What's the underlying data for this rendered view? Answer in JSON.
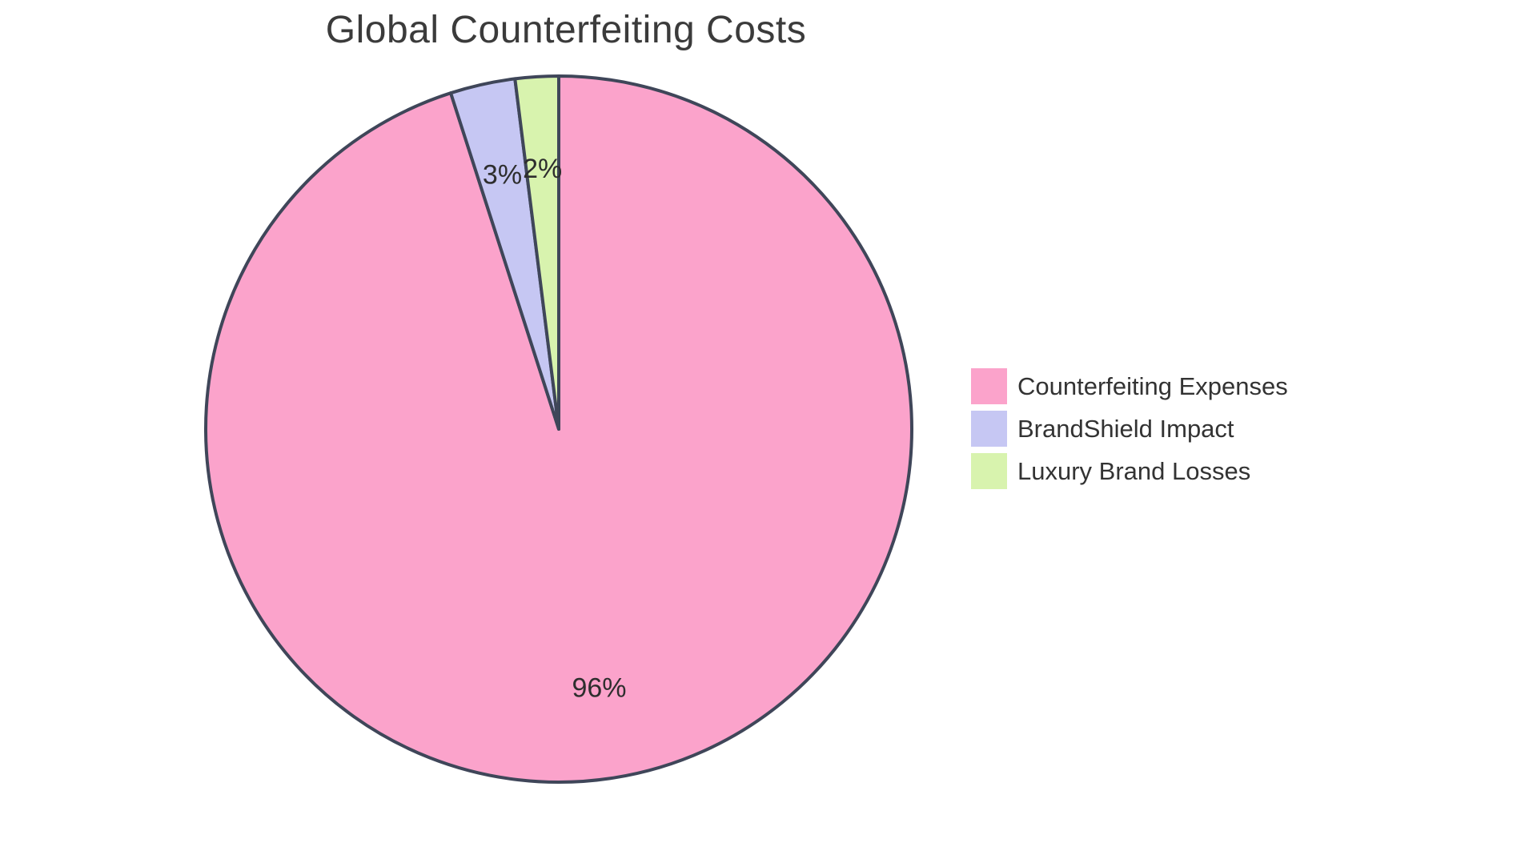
{
  "chart_data": {
    "type": "pie",
    "title": "Global Counterfeiting Costs",
    "labels": [
      "Counterfeiting Expenses",
      "BrandShield Impact",
      "Luxury Brand Losses"
    ],
    "values": [
      96,
      3,
      2
    ],
    "value_labels": [
      "96%",
      "3%",
      "2%"
    ],
    "colors": [
      "#FBA3CB",
      "#C6C7F3",
      "#D8F3AE"
    ],
    "slice_border_color": "#3F4659",
    "title_color": "#3B3B3B",
    "percent_label_color": "#2E2E2E",
    "legend_text_color": "#333333",
    "background_color": "#FFFFFF",
    "legend_position": "right",
    "direction": "clockwise",
    "start_angle": "top"
  }
}
